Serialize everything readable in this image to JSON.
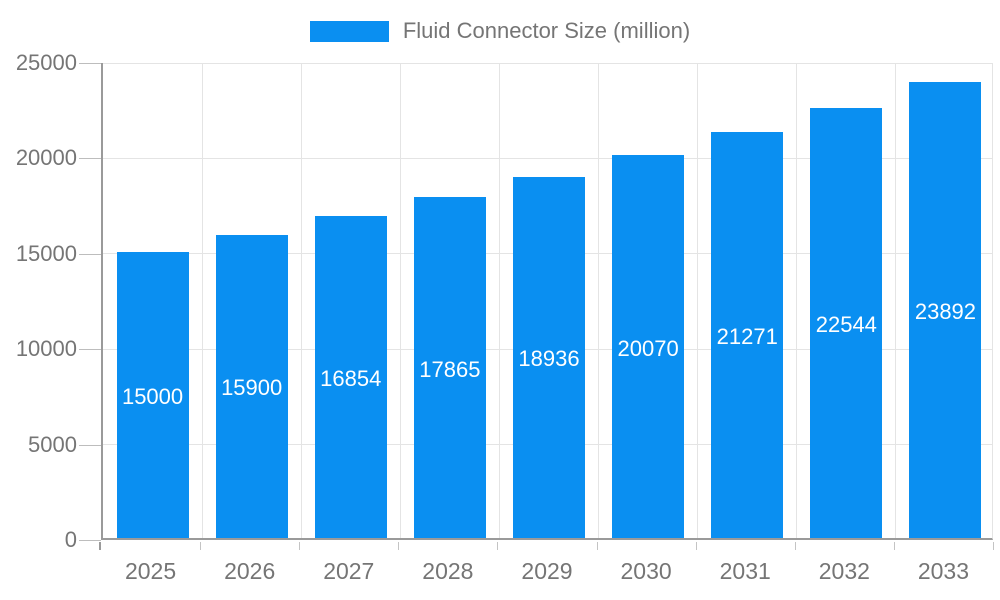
{
  "chart_data": {
    "type": "bar",
    "title": "",
    "legend": {
      "label": "Fluid Connector Size (million)",
      "position": "top"
    },
    "categories": [
      "2025",
      "2026",
      "2027",
      "2028",
      "2029",
      "2030",
      "2031",
      "2032",
      "2033"
    ],
    "series": [
      {
        "name": "Fluid Connector Size (million)",
        "values": [
          15000,
          15900,
          16854,
          17865,
          18936,
          20070,
          21271,
          22544,
          23892
        ]
      }
    ],
    "bar_value_labels": [
      "15000",
      "15900",
      "16854",
      "17865",
      "18936",
      "20070",
      "21271",
      "22544",
      "23892"
    ],
    "xlabel": "",
    "ylabel": "",
    "ylim": [
      0,
      25000
    ],
    "yticks": [
      0,
      5000,
      10000,
      15000,
      20000,
      25000
    ],
    "ytick_labels": [
      "0",
      "5000",
      "10000",
      "15000",
      "20000",
      "25000"
    ],
    "grid": "on",
    "colors": {
      "bar": "#0a8ff1",
      "grid_line": "#e4e4e4",
      "axis_line": "#9a9a9a",
      "tick_text": "#757575",
      "value_text": "#ffffff"
    }
  }
}
